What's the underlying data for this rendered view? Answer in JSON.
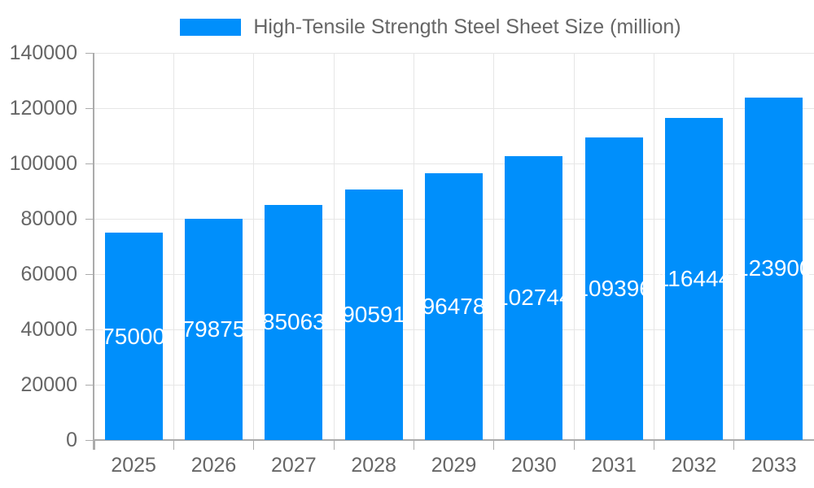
{
  "legend": {
    "label": "High-Tensile Strength Steel Sheet Size (million)"
  },
  "chart_data": {
    "type": "bar",
    "title": "High-Tensile Strength Steel Sheet Size (million)",
    "categories": [
      "2025",
      "2026",
      "2027",
      "2028",
      "2029",
      "2030",
      "2031",
      "2032",
      "2033"
    ],
    "values": [
      75000,
      79875,
      85063,
      90591,
      96478,
      102744,
      109396,
      116444,
      123900
    ],
    "xlabel": "",
    "ylabel": "",
    "ylim": [
      0,
      140000
    ],
    "ytick_step": 20000,
    "ytick_labels": [
      "0",
      "20000",
      "40000",
      "60000",
      "80000",
      "100000",
      "120000",
      "140000"
    ],
    "grid": true,
    "legend_position": "top",
    "colors": {
      "bar": "#008FFB",
      "data_label": "#ffffff",
      "axis_text": "#666666",
      "grid_line": "#e6e6e6",
      "axis_line": "#ababab"
    }
  }
}
